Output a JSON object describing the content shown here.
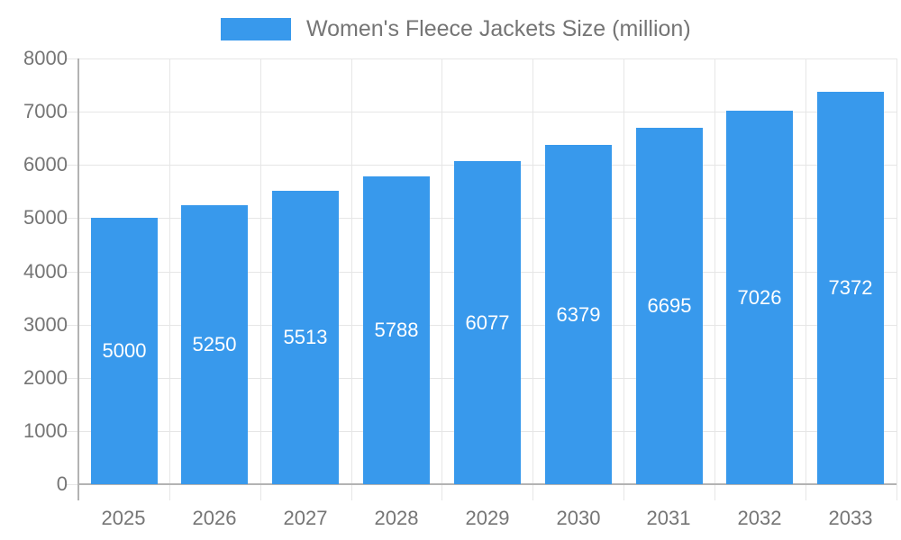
{
  "legend": {
    "label": "Women's Fleece Jackets Size (million)"
  },
  "chart_data": {
    "type": "bar",
    "title": "Women's Fleece Jackets Size (million)",
    "categories": [
      "2025",
      "2026",
      "2027",
      "2028",
      "2029",
      "2030",
      "2031",
      "2032",
      "2033"
    ],
    "values": [
      5000,
      5250,
      5513,
      5788,
      6077,
      6379,
      6695,
      7026,
      7372
    ],
    "xlabel": "",
    "ylabel": "",
    "ylim": [
      0,
      8000
    ],
    "yticks": [
      0,
      1000,
      2000,
      3000,
      4000,
      5000,
      6000,
      7000,
      8000
    ],
    "grid": true,
    "legend_position": "top",
    "value_label_position": "inside-center",
    "colors": {
      "bar": "#3899EC",
      "value_label": "#FFFFFF",
      "gridline": "#E6E6E6",
      "axis_line": "#B3B3B3",
      "tick_label": "#757575",
      "legend_text": "#757575",
      "background": "#FFFFFF"
    }
  }
}
